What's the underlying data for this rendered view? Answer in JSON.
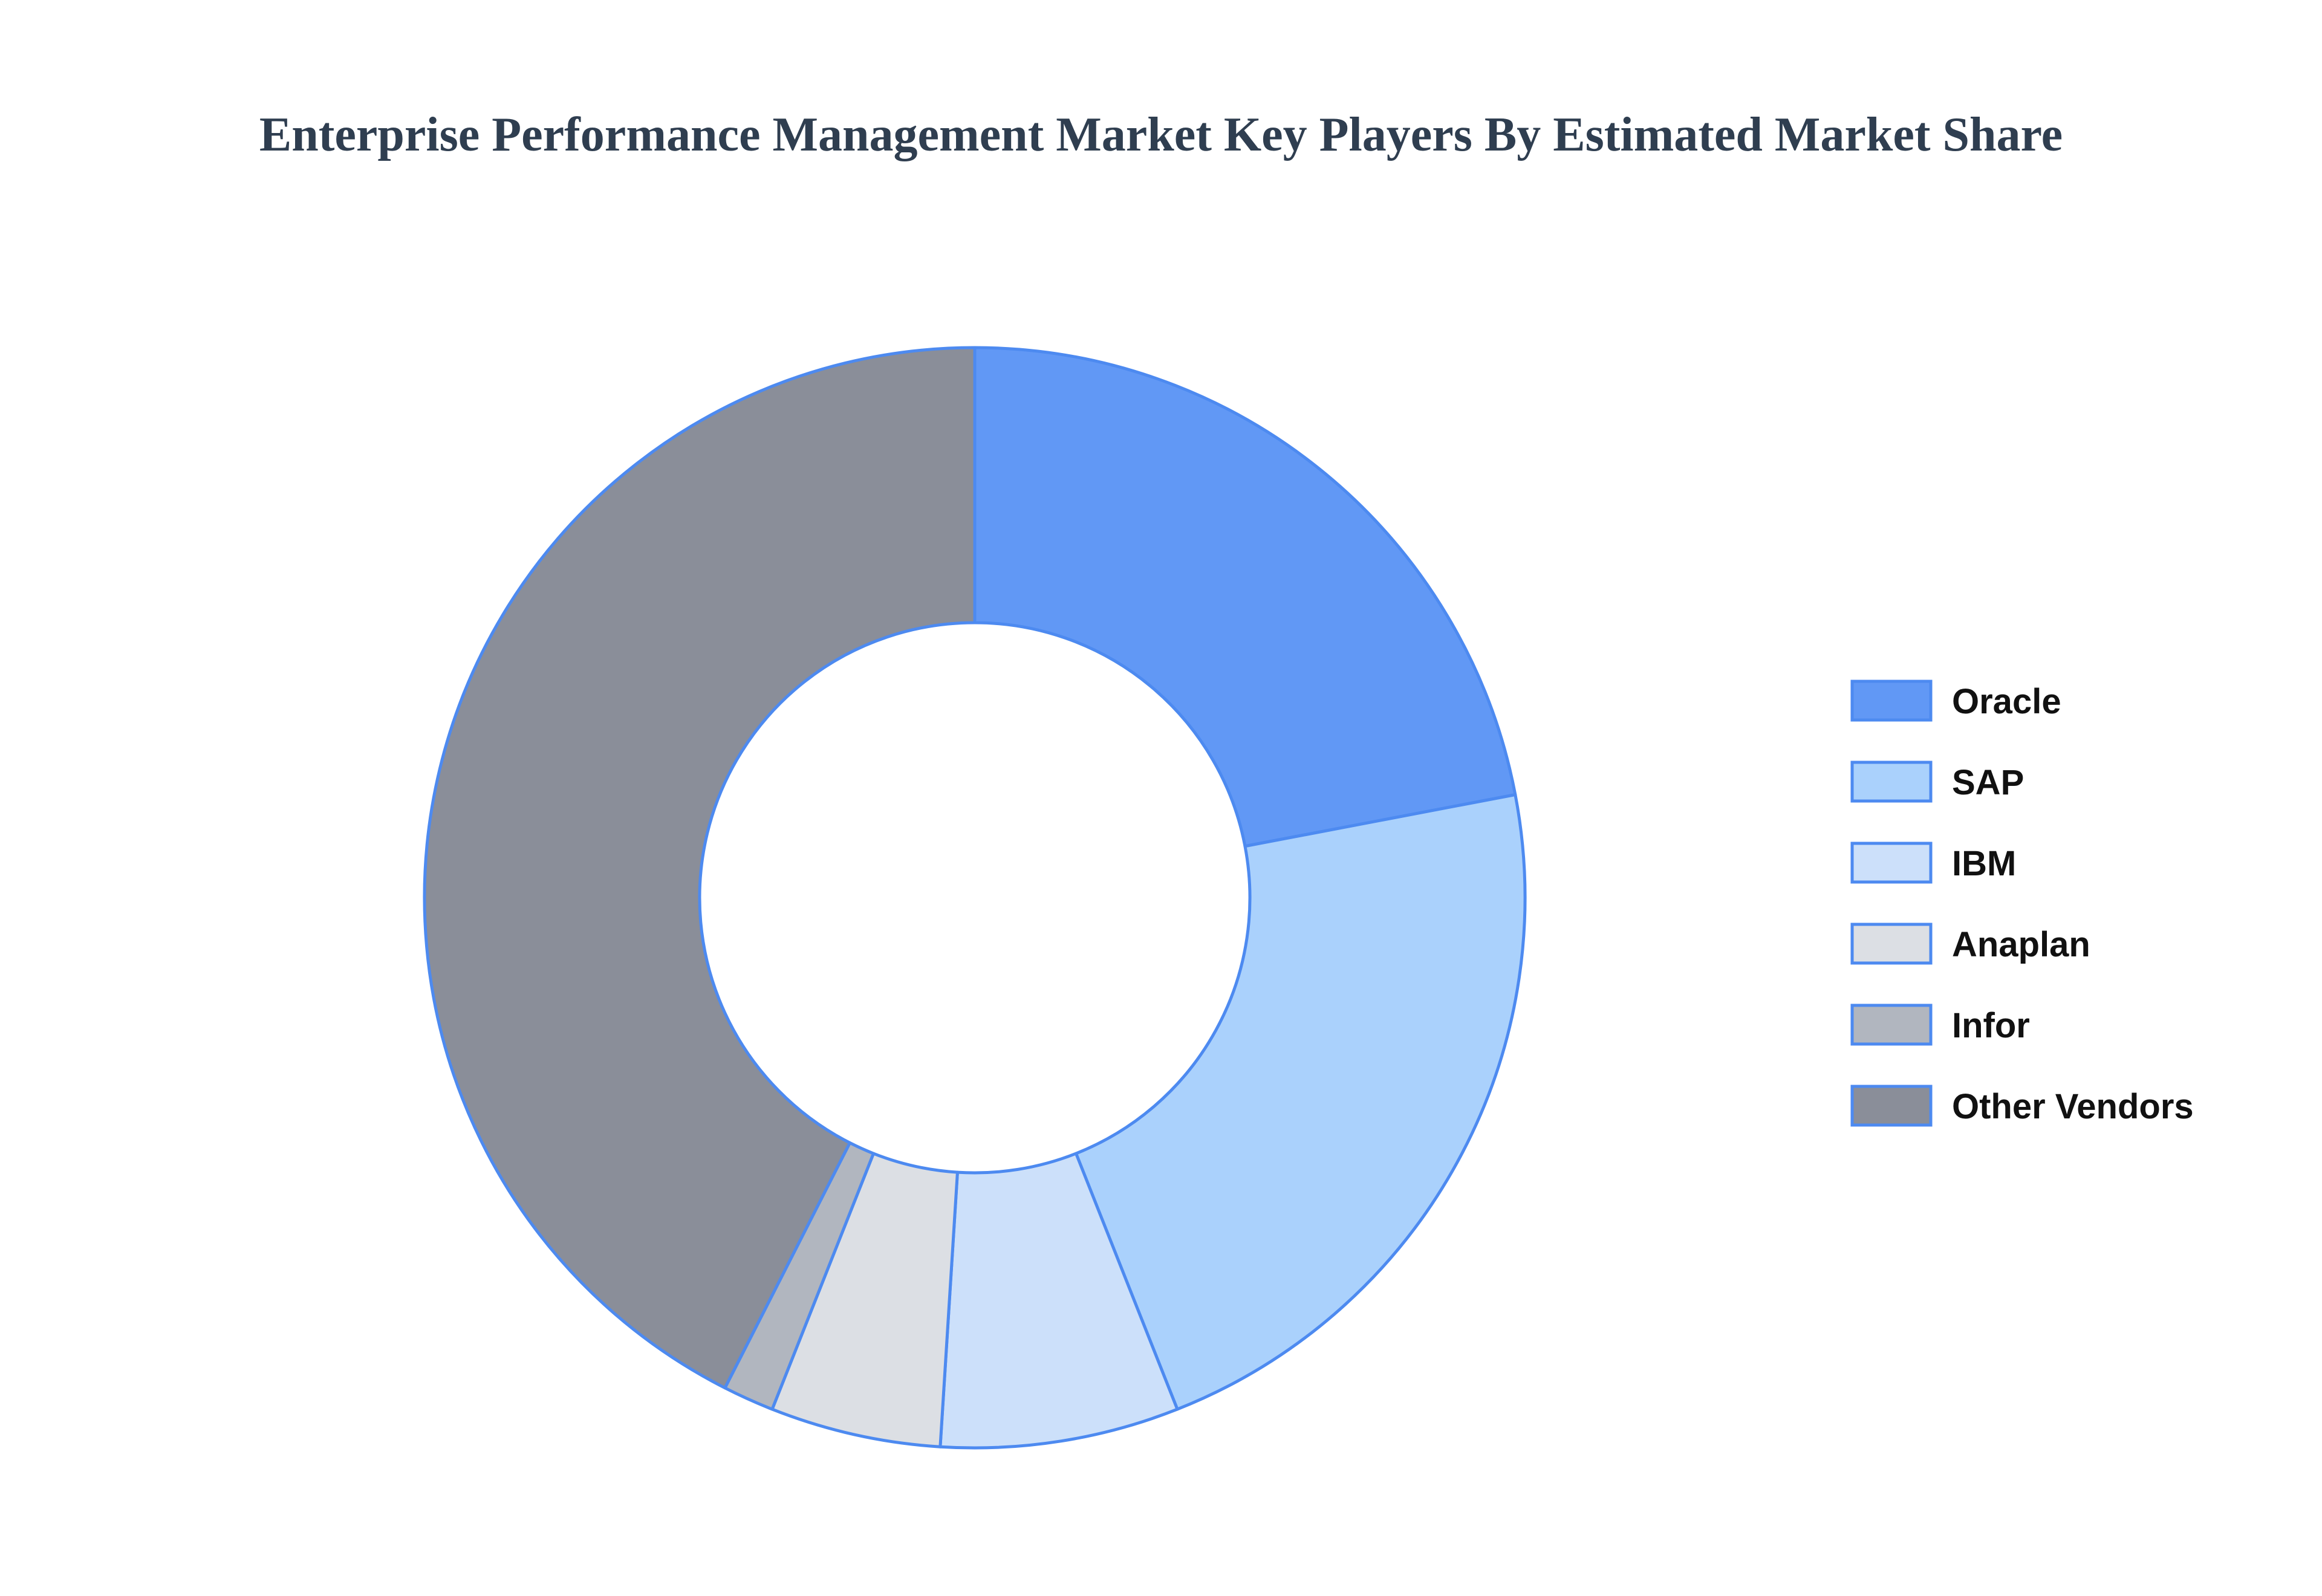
{
  "chart_data": {
    "type": "pie",
    "variant": "donut",
    "title": "Enterprise Performance Management Market Key Players By Estimated Market Share",
    "slice_stroke_color": "#4d8af0",
    "series": [
      {
        "name": "Oracle",
        "value": 22,
        "color": "#6198f5"
      },
      {
        "name": "SAP",
        "value": 22,
        "color": "#aad1fc"
      },
      {
        "name": "IBM",
        "value": 7,
        "color": "#cce0fa"
      },
      {
        "name": "Anaplan",
        "value": 5,
        "color": "#dcdfe4"
      },
      {
        "name": "Infor",
        "value": 1.5,
        "color": "#b1b6bf"
      },
      {
        "name": "Other Vendors",
        "value": 42.5,
        "color": "#8a8e99"
      }
    ],
    "legend_position": "right"
  }
}
